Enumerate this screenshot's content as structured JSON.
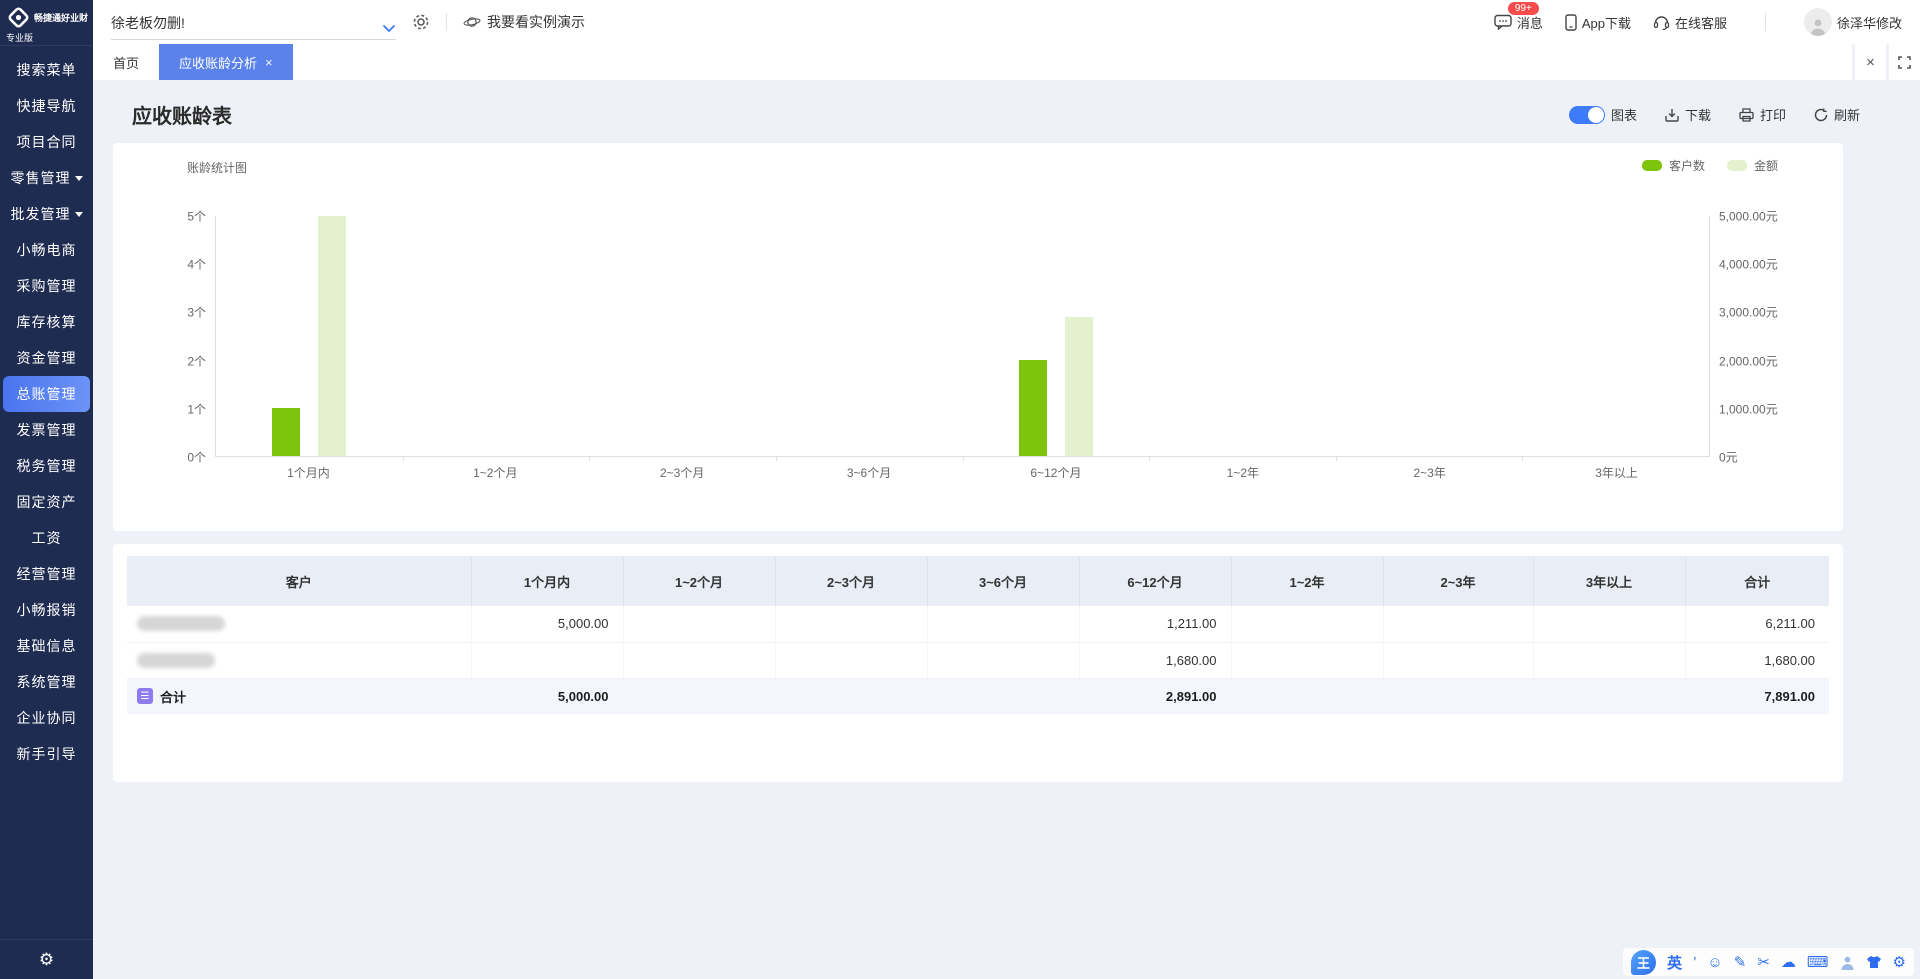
{
  "app": {
    "brand": "畅捷通好业财",
    "edition": "专业版"
  },
  "topbar": {
    "account": "徐老板勿删!",
    "demo_link": "我要看实例演示",
    "messages_label": "消息",
    "messages_badge": "99+",
    "app_download_label": "App下载",
    "online_service_label": "在线客服",
    "user_name": "徐泽华修改"
  },
  "sidebar": {
    "active_index": 9,
    "items": [
      {
        "label": "搜索菜单",
        "arrow": false
      },
      {
        "label": "快捷导航",
        "arrow": false
      },
      {
        "label": "项目合同",
        "arrow": false
      },
      {
        "label": "零售管理",
        "arrow": true
      },
      {
        "label": "批发管理",
        "arrow": true
      },
      {
        "label": "小畅电商",
        "arrow": false
      },
      {
        "label": "采购管理",
        "arrow": false
      },
      {
        "label": "库存核算",
        "arrow": false
      },
      {
        "label": "资金管理",
        "arrow": false
      },
      {
        "label": "总账管理",
        "arrow": false
      },
      {
        "label": "发票管理",
        "arrow": false
      },
      {
        "label": "税务管理",
        "arrow": false
      },
      {
        "label": "固定资产",
        "arrow": false
      },
      {
        "label": "工资",
        "arrow": false
      },
      {
        "label": "经营管理",
        "arrow": false
      },
      {
        "label": "小畅报销",
        "arrow": false
      },
      {
        "label": "基础信息",
        "arrow": false
      },
      {
        "label": "系统管理",
        "arrow": false
      },
      {
        "label": "企业协同",
        "arrow": false
      },
      {
        "label": "新手引导",
        "arrow": false
      }
    ]
  },
  "tabs": [
    {
      "label": "首页",
      "active": false,
      "closable": false
    },
    {
      "label": "应收账龄分析",
      "active": true,
      "closable": true
    }
  ],
  "page": {
    "title": "应收账龄表",
    "toggle_label": "图表",
    "toggle_on": true,
    "download_label": "下载",
    "print_label": "打印",
    "refresh_label": "刷新"
  },
  "chart_data": {
    "type": "bar",
    "title": "账龄统计图",
    "categories": [
      "1个月内",
      "1~2个月",
      "2~3个月",
      "3~6个月",
      "6~12个月",
      "1~2年",
      "2~3年",
      "3年以上"
    ],
    "series": [
      {
        "name": "客户数",
        "axis": "left",
        "color": "#7cc40e",
        "values": [
          1,
          0,
          0,
          0,
          2,
          0,
          0,
          0
        ]
      },
      {
        "name": "金额",
        "axis": "right",
        "color": "#e4f1cf",
        "values": [
          5000,
          0,
          0,
          0,
          2891,
          0,
          0,
          0
        ]
      }
    ],
    "left_axis": {
      "ticks": [
        "5个",
        "4个",
        "3个",
        "2个",
        "1个",
        "0个"
      ],
      "max": 5,
      "min": 0
    },
    "right_axis": {
      "ticks": [
        "5,000.00元",
        "4,000.00元",
        "3,000.00元",
        "2,000.00元",
        "1,000.00元",
        "0元"
      ],
      "max": 5000,
      "min": 0
    },
    "legend_position": "top-right",
    "grid": false
  },
  "table": {
    "headers": [
      "客户",
      "1个月内",
      "1~2个月",
      "2~3个月",
      "3~6个月",
      "6~12个月",
      "1~2年",
      "2~3年",
      "3年以上",
      "合计"
    ],
    "rows": [
      {
        "customer_redacted": true,
        "values": [
          "5,000.00",
          "",
          "",
          "",
          "1,211.00",
          "",
          "",
          "",
          "6,211.00"
        ]
      },
      {
        "customer_redacted": true,
        "values": [
          "",
          "",
          "",
          "",
          "1,680.00",
          "",
          "",
          "",
          "1,680.00"
        ]
      }
    ],
    "total_row": {
      "label": "合计",
      "values": [
        "5,000.00",
        "",
        "",
        "",
        "2,891.00",
        "",
        "",
        "",
        "7,891.00"
      ]
    }
  },
  "ime": {
    "logo": "王",
    "lang": "英",
    "tone_mark": "’"
  },
  "colors": {
    "sidebar_bg": "#1f2c52",
    "active_item": "#4a74ee",
    "tab_active": "#5b82ea",
    "accent_blue": "#3e7bfa",
    "count_green": "#7cc40e",
    "amount_green": "#e4f1cf",
    "badge_red": "#f64c4c",
    "content_bg": "#eef1f7"
  }
}
